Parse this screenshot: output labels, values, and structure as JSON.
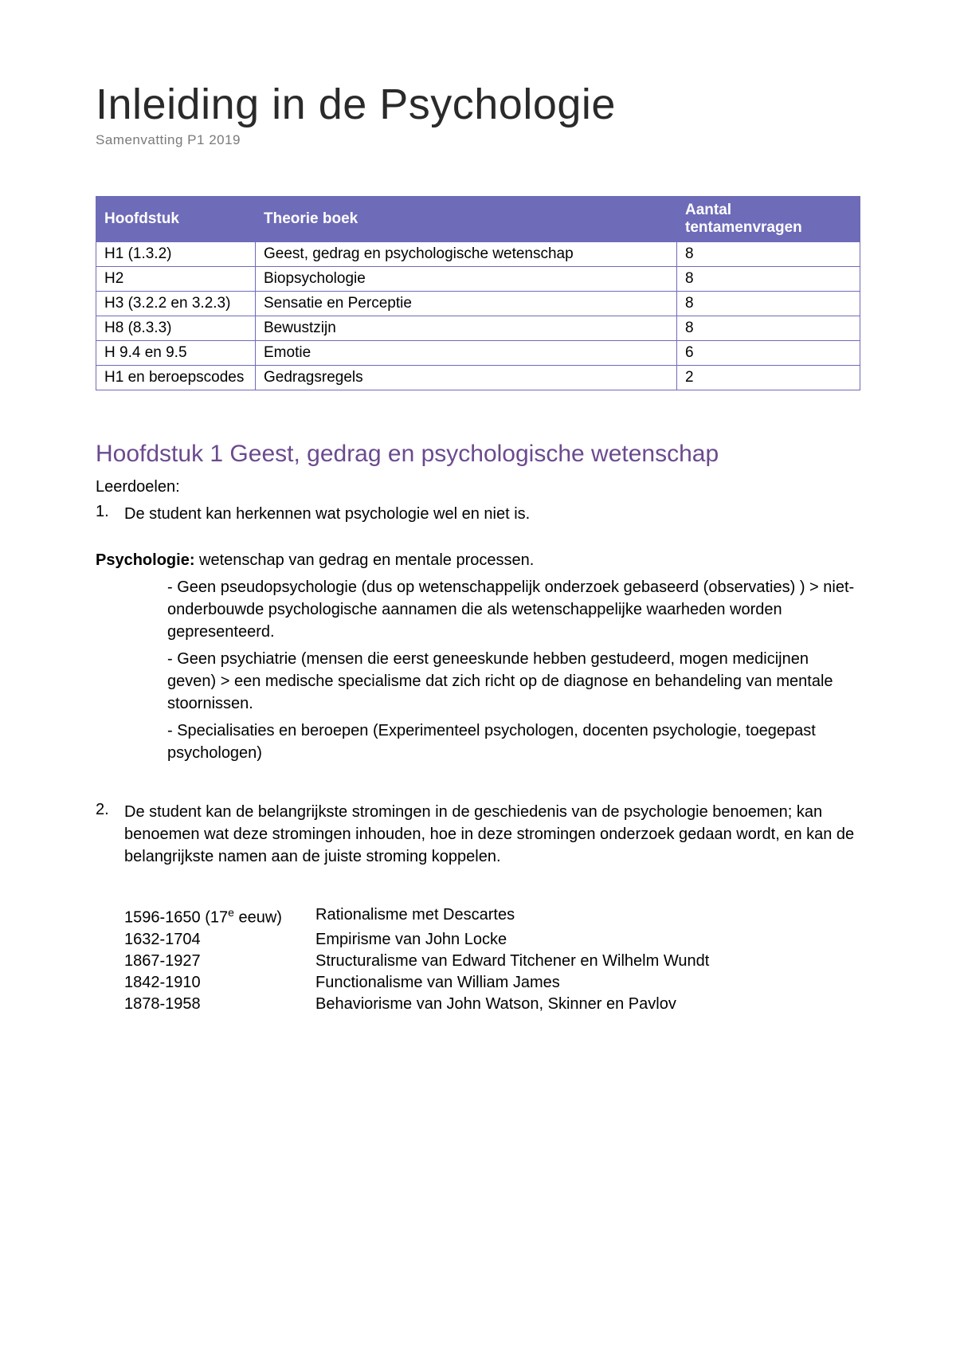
{
  "title": "Inleiding in de Psychologie",
  "subtitle": "Samenvatting P1 2019",
  "chapters_table": {
    "columns": [
      "Hoofdstuk",
      "Theorie boek",
      "Aantal tentamenvragen"
    ],
    "rows": [
      [
        "H1 (1.3.2)",
        "Geest, gedrag en psychologische wetenschap",
        "8"
      ],
      [
        "H2",
        "Biopsychologie",
        "8"
      ],
      [
        "H3 (3.2.2 en 3.2.3)",
        "Sensatie en Perceptie",
        "8"
      ],
      [
        "H8 (8.3.3)",
        "Bewustzijn",
        "8"
      ],
      [
        "H 9.4 en 9.5",
        "Emotie",
        "6"
      ],
      [
        "H1 en beroepscodes",
        "Gedragsregels",
        "2"
      ]
    ],
    "header_bg": "#6e6bb8",
    "header_fg": "#ffffff",
    "border_color": "#6e6bb8"
  },
  "section1": {
    "heading": "Hoofdstuk 1 Geest, gedrag en psychologische wetenschap",
    "leerdoelen_label": "Leerdoelen:",
    "item1_num": "1.",
    "item1_text": "De student kan herkennen wat psychologie wel en niet is.",
    "def_label": "Psychologie:",
    "def_text": " wetenschap van gedrag en mentale processen.",
    "bullet1": "- Geen pseudopsychologie (dus op wetenschappelijk onderzoek gebaseerd (observaties) )   > niet-onderbouwde psychologische aannamen die als wetenschappelijke waarheden worden gepresenteerd.",
    "bullet2": "- Geen psychiatrie (mensen die eerst geneeskunde hebben gestudeerd, mogen medicijnen geven) > een medische specialisme dat zich richt op de diagnose en behandeling van mentale stoornissen.",
    "bullet3": "- Specialisaties en beroepen (Experimenteel psychologen, docenten psychologie, toegepast psychologen)",
    "item2_num": "2.",
    "item2_text": "De student kan de belangrijkste stromingen in de geschiedenis van de psychologie benoemen; kan benoemen wat deze stromingen inhouden, hoe in deze stromingen onderzoek gedaan wordt, en kan de belangrijkste namen aan de juiste stroming koppelen."
  },
  "history_table": {
    "rows": [
      {
        "year_pre": "1596-1650 (17",
        "sup": "e",
        "year_post": " eeuw)",
        "desc": "Rationalisme met Descartes"
      },
      {
        "year_pre": "1632-1704",
        "sup": "",
        "year_post": "",
        "desc": "Empirisme van John Locke"
      },
      {
        "year_pre": "1867-1927",
        "sup": "",
        "year_post": "",
        "desc": "Structuralisme van Edward Titchener en Wilhelm Wundt"
      },
      {
        "year_pre": "1842-1910",
        "sup": "",
        "year_post": "",
        "desc": "Functionalisme van William James"
      },
      {
        "year_pre": "1878-1958",
        "sup": "",
        "year_post": "",
        "desc": "Behaviorisme van John Watson, Skinner en Pavlov"
      }
    ]
  }
}
